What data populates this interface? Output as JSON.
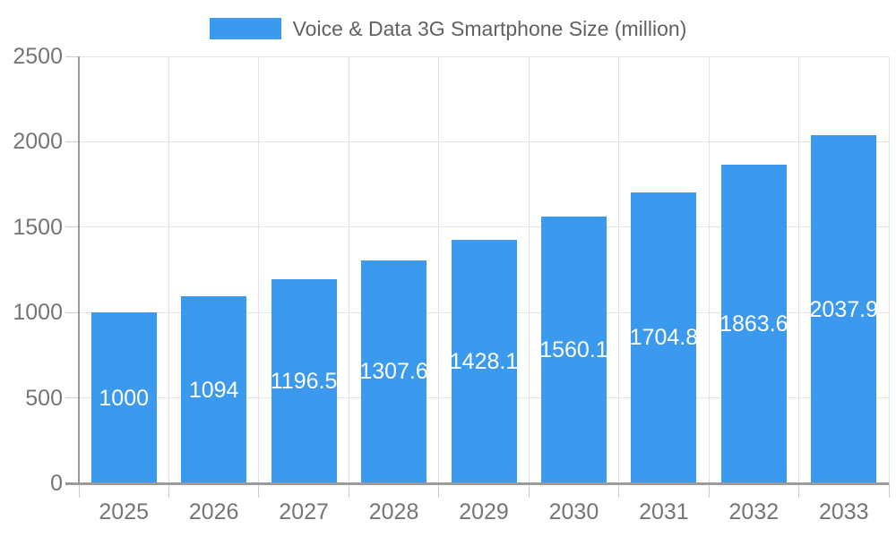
{
  "legend": {
    "label": "Voice & Data 3G Smartphone Size (million)"
  },
  "chart_data": {
    "type": "bar",
    "title": "Voice & Data 3G Smartphone Size (million)",
    "xlabel": "",
    "ylabel": "",
    "categories": [
      "2025",
      "2026",
      "2027",
      "2028",
      "2029",
      "2030",
      "2031",
      "2032",
      "2033"
    ],
    "values": [
      1000,
      1094,
      1196.5,
      1307.6,
      1428.1,
      1560.1,
      1704.8,
      1863.6,
      2037.9
    ],
    "value_labels": [
      "1000",
      "1094",
      "1196.5",
      "1307.6",
      "1428.1",
      "1560.1",
      "1704.8",
      "1863.6",
      "2037.9"
    ],
    "ylim": [
      0,
      2500
    ],
    "yticks": [
      0,
      500,
      1000,
      1500,
      2000,
      2500
    ],
    "grid": true,
    "legend_position": "top"
  },
  "colors": {
    "background": "#ffffff",
    "bar": "#3c9aee",
    "grid_line": "#e3e3e3",
    "axis_line": "#9a9a9a",
    "tick_mark": "#cdcdcd",
    "tick_label": "#757575",
    "legend_text": "#616161",
    "bar_value_label": "#ffffff"
  }
}
